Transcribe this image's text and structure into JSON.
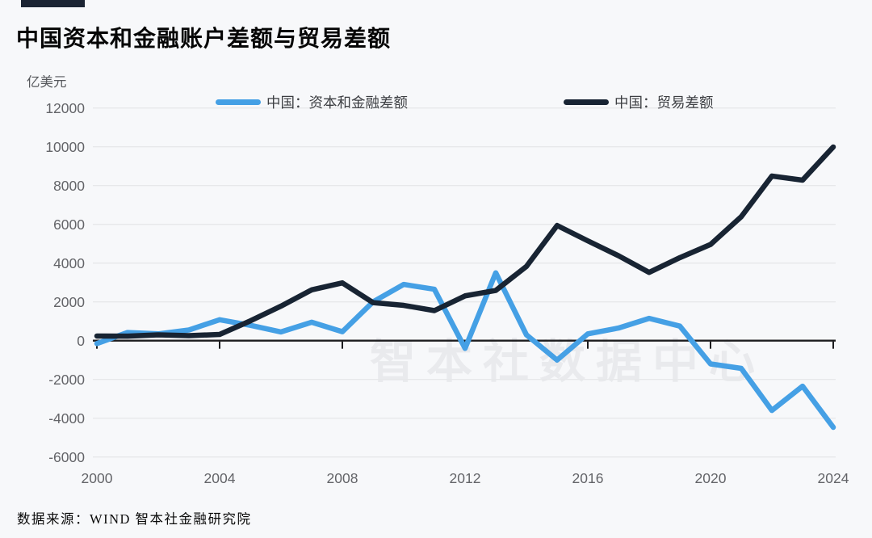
{
  "header": {
    "title": "中国资本和金融账户差额与贸易差额",
    "unit_label": "亿美元"
  },
  "legend": [
    {
      "label": "中国：资本和金融差额",
      "color": "#45A0E5"
    },
    {
      "label": "中国：贸易差额",
      "color": "#182433"
    }
  ],
  "watermark": "智本社数据中心",
  "footer": {
    "source": "数据来源：WIND 智本社金融研究院"
  },
  "chart_data": {
    "type": "line",
    "title": "中国资本和金融账户差额与贸易差额",
    "xlabel": "",
    "ylabel": "亿美元",
    "x": [
      2000,
      2001,
      2002,
      2003,
      2004,
      2005,
      2006,
      2007,
      2008,
      2009,
      2010,
      2011,
      2012,
      2013,
      2014,
      2015,
      2016,
      2017,
      2018,
      2019,
      2020,
      2021,
      2022,
      2023,
      2024
    ],
    "series": [
      {
        "name": "中国：资本和金融差额",
        "color": "#45A0E5",
        "values": [
          -150,
          420,
          350,
          550,
          1080,
          790,
          450,
          950,
          460,
          2000,
          2900,
          2650,
          -400,
          3500,
          300,
          -1000,
          350,
          650,
          1150,
          750,
          -1200,
          -1430,
          -3600,
          -2350,
          -4470
        ]
      },
      {
        "name": "中国：贸易差额",
        "color": "#182433",
        "values": [
          240,
          230,
          300,
          260,
          320,
          1020,
          1780,
          2620,
          2980,
          1960,
          1820,
          1550,
          2310,
          2590,
          3830,
          5940,
          5150,
          4380,
          3520,
          4280,
          4960,
          6390,
          8490,
          8280,
          9990
        ]
      }
    ],
    "ylim": [
      -6000,
      12000
    ],
    "y_ticks": [
      12000,
      10000,
      8000,
      6000,
      4000,
      2000,
      0,
      -2000,
      -4000,
      -6000
    ],
    "x_ticks": [
      2000,
      2004,
      2008,
      2012,
      2016,
      2020,
      2024
    ],
    "grid": true,
    "legend_position": "top"
  }
}
